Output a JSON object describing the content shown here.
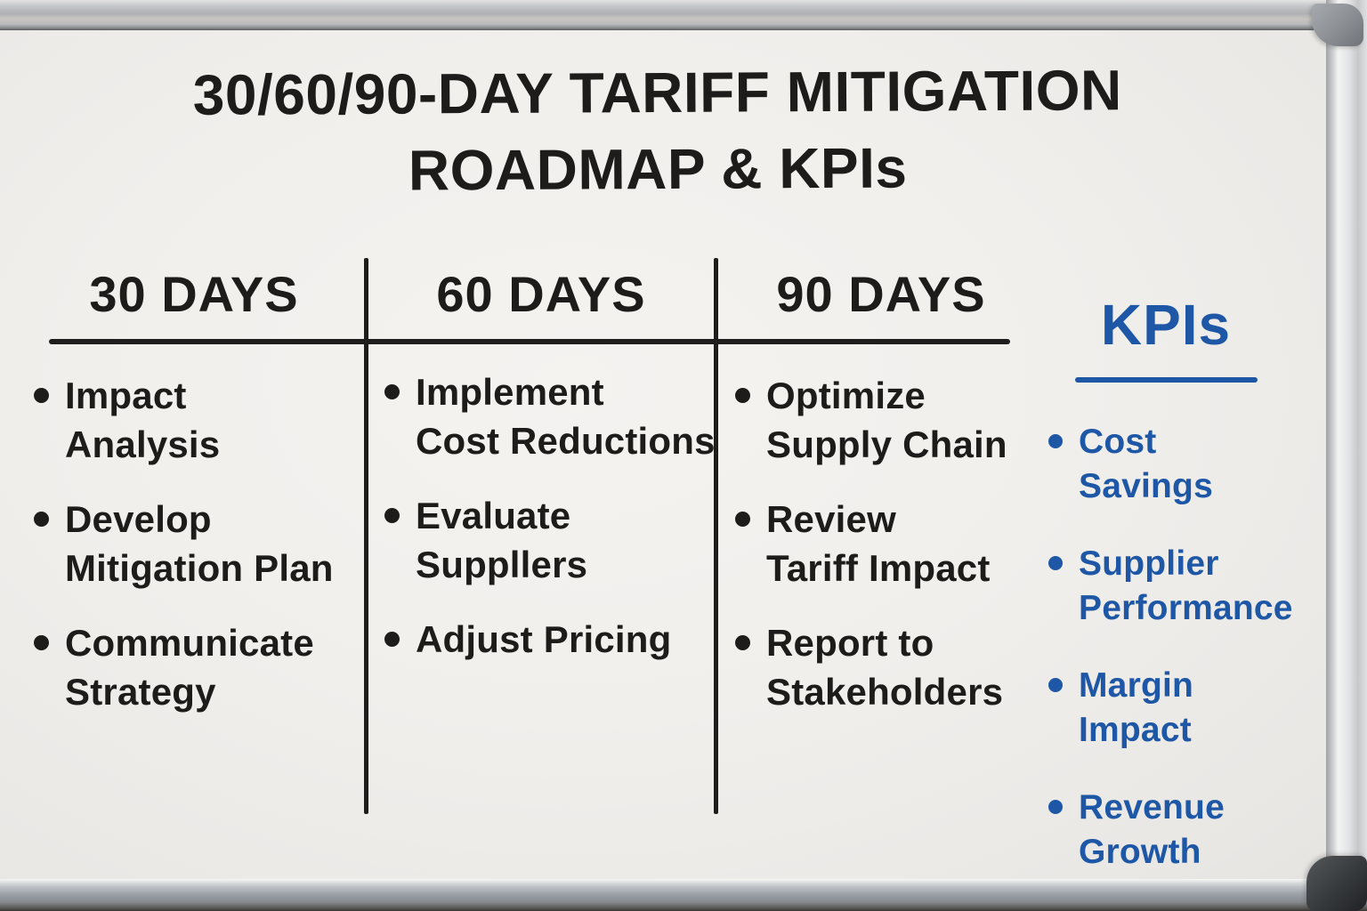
{
  "board": {
    "title": {
      "line1": "30/60/90-DAY TARIFF MITIGATION",
      "line2": "ROADMAP & KPIs"
    },
    "columns": [
      {
        "header": "30 DAYS",
        "items": [
          "Impact\nAnalysis",
          "Develop\nMitigation Plan",
          "Communicate\nStrategy"
        ]
      },
      {
        "header": "60 DAYS",
        "items": [
          "Implement\nCost Reductions",
          "Evaluate\nSuppllers",
          "Adjust Pricing"
        ]
      },
      {
        "header": "90 DAYS",
        "items": [
          "Optimize\nSupply Chain",
          "Review\nTariff Impact",
          "Report to\nStakeholders"
        ]
      }
    ],
    "kpis": {
      "header": "KPIs",
      "items": [
        "Cost\nSavings",
        "Supplier\nPerformance",
        "Margin\nImpact",
        "Revenue\nGrowth"
      ]
    },
    "colors": {
      "ink_black": "#1e1c1a",
      "ink_blue": "#1d57a5"
    }
  }
}
